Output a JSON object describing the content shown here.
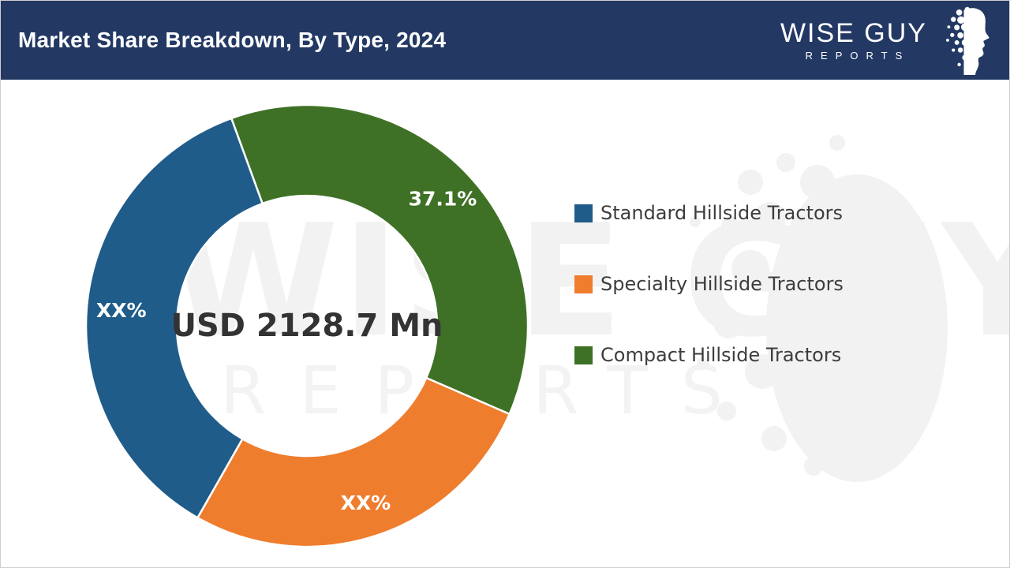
{
  "header": {
    "title": "Market Share Breakdown, By Type, 2024",
    "bg_color": "#233964",
    "logo": {
      "line1": "WISE GUY",
      "line2": "REPORTS"
    }
  },
  "watermark": {
    "line1": "WISE GUY",
    "line2": "REPORTS"
  },
  "chart_data": {
    "type": "pie",
    "subtype": "donut",
    "title": "Market Share Breakdown, By Type, 2024",
    "center_text": "USD 2128.7 Mn",
    "start_angle_deg": -20,
    "direction": "clockwise",
    "legend_position": "right",
    "segments": [
      {
        "name": "Compact Hillside Tractors",
        "value_pct": 37.1,
        "label": "37.1%",
        "color": "#3e7125"
      },
      {
        "name": "Specialty Hillside Tractors",
        "value_pct": 26.7,
        "label": "XX%",
        "color": "#ef7d2e"
      },
      {
        "name": "Standard Hillside Tractors",
        "value_pct": 36.2,
        "label": "XX%",
        "color": "#1f5c8a"
      }
    ]
  },
  "legend": {
    "items": [
      {
        "label": "Standard Hillside Tractors",
        "color": "#1f5c8a"
      },
      {
        "label": "Specialty Hillside Tractors",
        "color": "#ef7d2e"
      },
      {
        "label": "Compact Hillside Tractors",
        "color": "#3e7125"
      }
    ]
  }
}
